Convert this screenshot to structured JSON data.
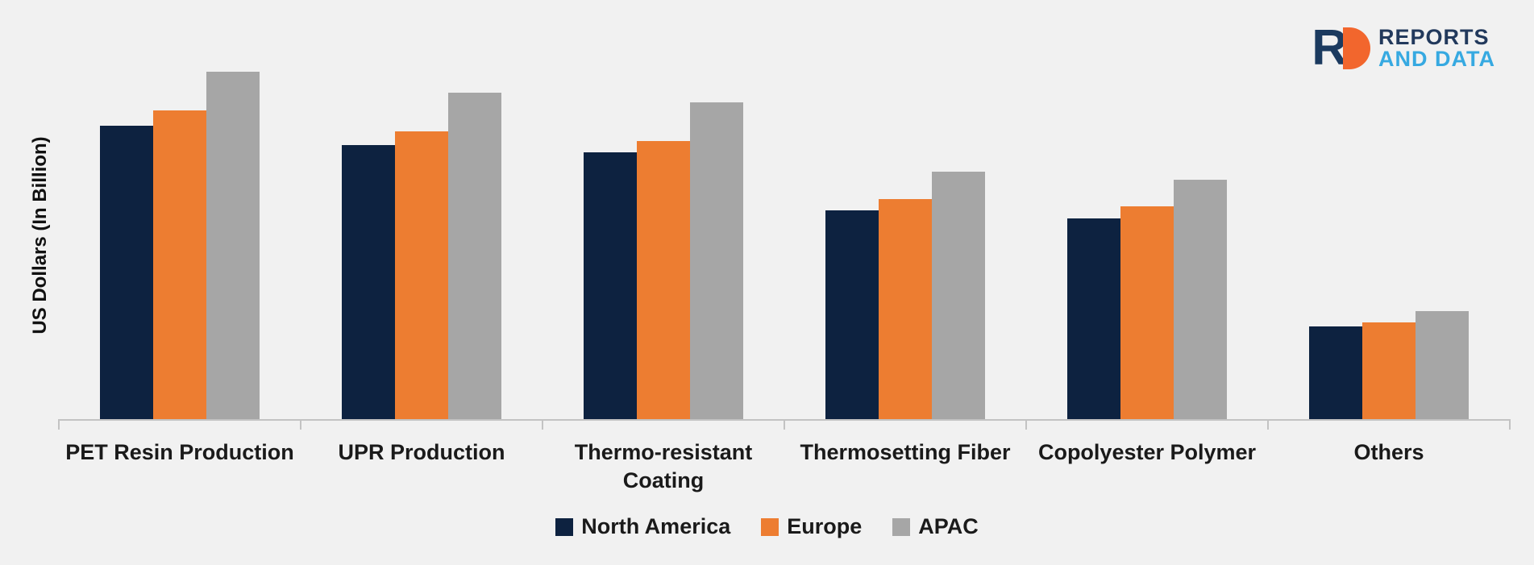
{
  "logo": {
    "mark": "R",
    "line1": "REPORTS",
    "line2": "AND DATA",
    "colors": {
      "mark_navy": "#1b3a5f",
      "mark_orange": "#f2662d",
      "text_navy": "#22395c",
      "text_blue": "#36a9e1"
    }
  },
  "chart_data": {
    "type": "bar",
    "title": "",
    "ylabel": "US Dollars (In Billion)",
    "xlabel": "",
    "categories": [
      "PET Resin Production",
      "UPR Production",
      "Thermo-resistant Coating",
      "Thermosetting Fiber",
      "Copolyester Polymer",
      "Others"
    ],
    "series": [
      {
        "name": "North America",
        "color": "#0d2240",
        "values": [
          7.6,
          7.1,
          6.9,
          5.4,
          5.2,
          2.4
        ]
      },
      {
        "name": "Europe",
        "color": "#ed7d31",
        "values": [
          8.0,
          7.45,
          7.2,
          5.7,
          5.5,
          2.5
        ]
      },
      {
        "name": "APAC",
        "color": "#a6a6a6",
        "values": [
          9.0,
          8.45,
          8.2,
          6.4,
          6.2,
          2.8
        ]
      }
    ],
    "ylim": [
      0,
      9.6
    ],
    "grid": false,
    "y_ticks_visible": false,
    "legend_position": "bottom",
    "axis_color": "#c3c3c3",
    "background_color": "#f1f1f1"
  }
}
